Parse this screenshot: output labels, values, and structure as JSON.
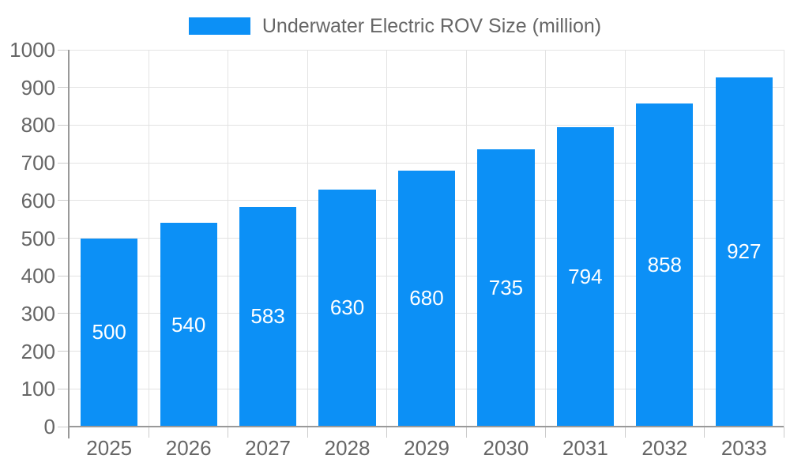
{
  "chart_data": {
    "type": "bar",
    "title": "Underwater Electric ROV Size (million)",
    "legend_label": "Underwater Electric ROV Size (million)",
    "legend_position": "top-center",
    "categories": [
      "2025",
      "2026",
      "2027",
      "2028",
      "2029",
      "2030",
      "2031",
      "2032",
      "2033"
    ],
    "values": [
      500,
      540,
      583,
      630,
      680,
      735,
      794,
      858,
      927
    ],
    "value_labels": [
      "500",
      "540",
      "583",
      "630",
      "680",
      "735",
      "794",
      "858",
      "927"
    ],
    "value_labels_inside_bars": true,
    "xlabel": "",
    "ylabel": "",
    "ylim": [
      0,
      1000
    ],
    "yticks": [
      0,
      100,
      200,
      300,
      400,
      500,
      600,
      700,
      800,
      900,
      1000
    ],
    "grid": {
      "horizontal": true,
      "vertical": true
    },
    "colors": {
      "bar": "#0c90f6",
      "bar_value_label": "#ffffff",
      "axis_line": "#999999",
      "grid_line": "#e3e3e3",
      "tick_line": "#cccccc",
      "axis_text": "#666666",
      "legend_text": "#666666",
      "background": "#ffffff"
    }
  }
}
